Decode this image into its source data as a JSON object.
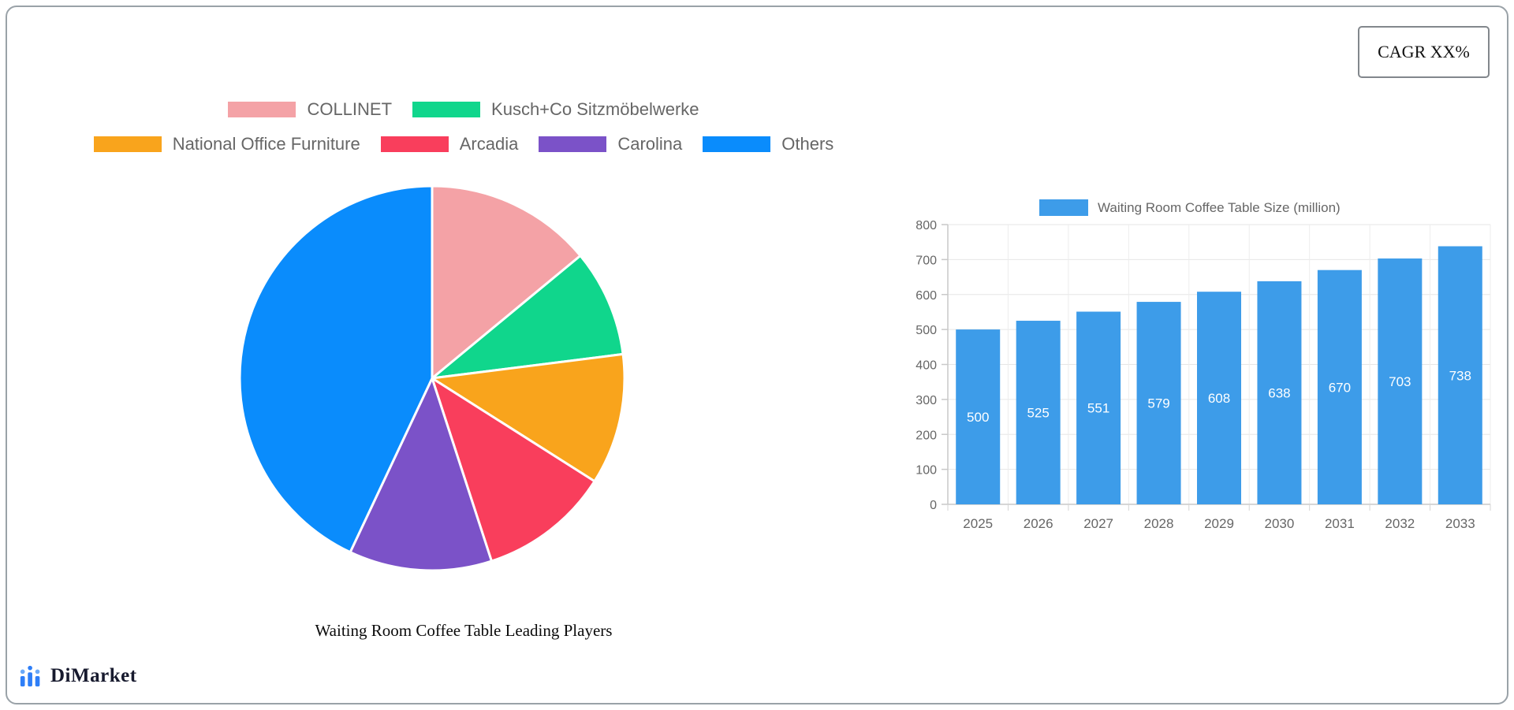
{
  "cagr_box": {
    "label": "CAGR XX%"
  },
  "brand": {
    "name": "DiMarket",
    "icon": "bar-chart-logo-icon"
  },
  "colors": {
    "card_border": "#9aa2a8",
    "legend_text": "#666666",
    "axis_text": "#666666",
    "gridline": "#e6e6e6",
    "axis_line": "#c9c9c9"
  },
  "chart_data": [
    {
      "type": "pie",
      "title": "Waiting Room Coffee Table Leading Players",
      "start": "top, clockwise",
      "legend_position": "top",
      "legend_rows": [
        [
          "COLLINET",
          "Kusch+Co Sitzmöbelwerke"
        ],
        [
          "National Office Furniture",
          "Arcadia",
          "Carolina",
          "Others"
        ]
      ],
      "slices": [
        {
          "label": "COLLINET",
          "value_pct": 14,
          "color": "#F4A2A6"
        },
        {
          "label": "Kusch+Co Sitzmöbelwerke",
          "value_pct": 9,
          "color": "#10D68C"
        },
        {
          "label": "National Office Furniture",
          "value_pct": 11,
          "color": "#F9A41C"
        },
        {
          "label": "Arcadia",
          "value_pct": 11,
          "color": "#F93E5C"
        },
        {
          "label": "Carolina",
          "value_pct": 12,
          "color": "#7B52C8"
        },
        {
          "label": "Others",
          "value_pct": 43,
          "color": "#0A8CFC"
        }
      ]
    },
    {
      "type": "bar",
      "legend_label": "Waiting Room Coffee Table Size (million)",
      "categories": [
        "2025",
        "2026",
        "2027",
        "2028",
        "2029",
        "2030",
        "2031",
        "2032",
        "2033"
      ],
      "values": [
        500,
        525,
        551,
        579,
        608,
        638,
        670,
        703,
        738
      ],
      "ylim": [
        0,
        800
      ],
      "ytick_step": 100,
      "grid": true,
      "bar_color": "#3D9CE9",
      "value_label_color": "#FFFFFF",
      "legend_position": "top"
    }
  ]
}
